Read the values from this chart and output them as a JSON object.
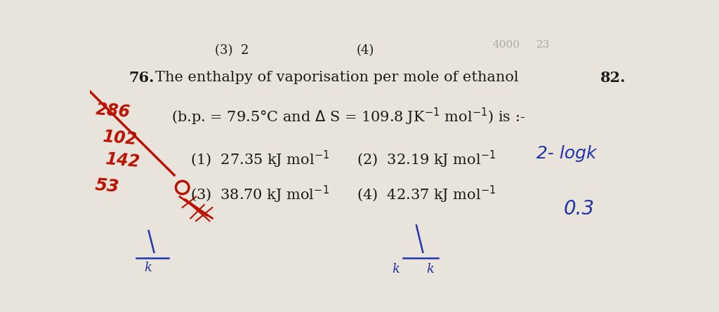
{
  "bg_color": "#e8e4dc",
  "text_color": "#1a1a1a",
  "question_number": "76.",
  "question_text": "The enthalpy of vaporisation per mole of ethanol",
  "right_number": "82.",
  "options": [
    {
      "num": "(1)",
      "val": "27.35 kJ mol⁻¹"
    },
    {
      "num": "(2)",
      "val": "32.19 kJ mol⁻¹"
    },
    {
      "num": "(3)",
      "val": "38.70 kJ mol⁻¹"
    },
    {
      "num": "(4)",
      "val": "42.37 kJ mol⁻¹"
    }
  ],
  "top_text_left": "(3)  2",
  "top_text_right": "(4)",
  "red_color": "#bb1100",
  "blue_color": "#2233aa"
}
